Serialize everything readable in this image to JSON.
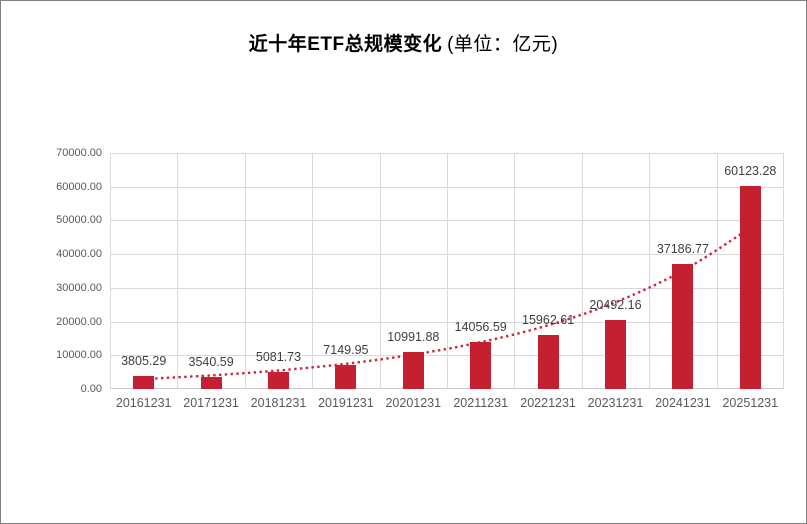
{
  "title": {
    "main": "近十年ETF总规模变化",
    "unit": "(单位：亿元)"
  },
  "chart_data": {
    "type": "bar",
    "title": "近十年ETF总规模变化 (单位：亿元)",
    "categories": [
      "20161231",
      "20171231",
      "20181231",
      "20191231",
      "20201231",
      "20211231",
      "20221231",
      "20231231",
      "20241231",
      "20251231"
    ],
    "values": [
      3805.29,
      3540.59,
      5081.73,
      7149.95,
      10991.88,
      14056.59,
      15962.61,
      20492.16,
      37186.77,
      60123.28
    ],
    "data_labels": [
      "3805.29",
      "3540.59",
      "5081.73",
      "7149.95",
      "10991.88",
      "14056.59",
      "15962.61",
      "20492.16",
      "37186.77",
      "60123.28"
    ],
    "y_ticks": [
      "0.00",
      "10000.00",
      "20000.00",
      "30000.00",
      "40000.00",
      "50000.00",
      "60000.00",
      "70000.00"
    ],
    "ylim": [
      0,
      70000
    ],
    "xlabel": "",
    "ylabel": "",
    "grid": "both",
    "legend": "none",
    "colors": {
      "bar": "#C42031",
      "trend": "#CA2439",
      "gridline": "#D9D9D9",
      "axis_line": "#C9C9C9",
      "tick_text": "#595959",
      "label_text": "#3F3F3F",
      "title_text": "#000000"
    },
    "trendline": {
      "type": "exponential",
      "style": "dotted",
      "values": [
        2960,
        4032,
        5492,
        7481,
        10190,
        13880,
        18906,
        25752,
        35077,
        47779
      ]
    }
  }
}
